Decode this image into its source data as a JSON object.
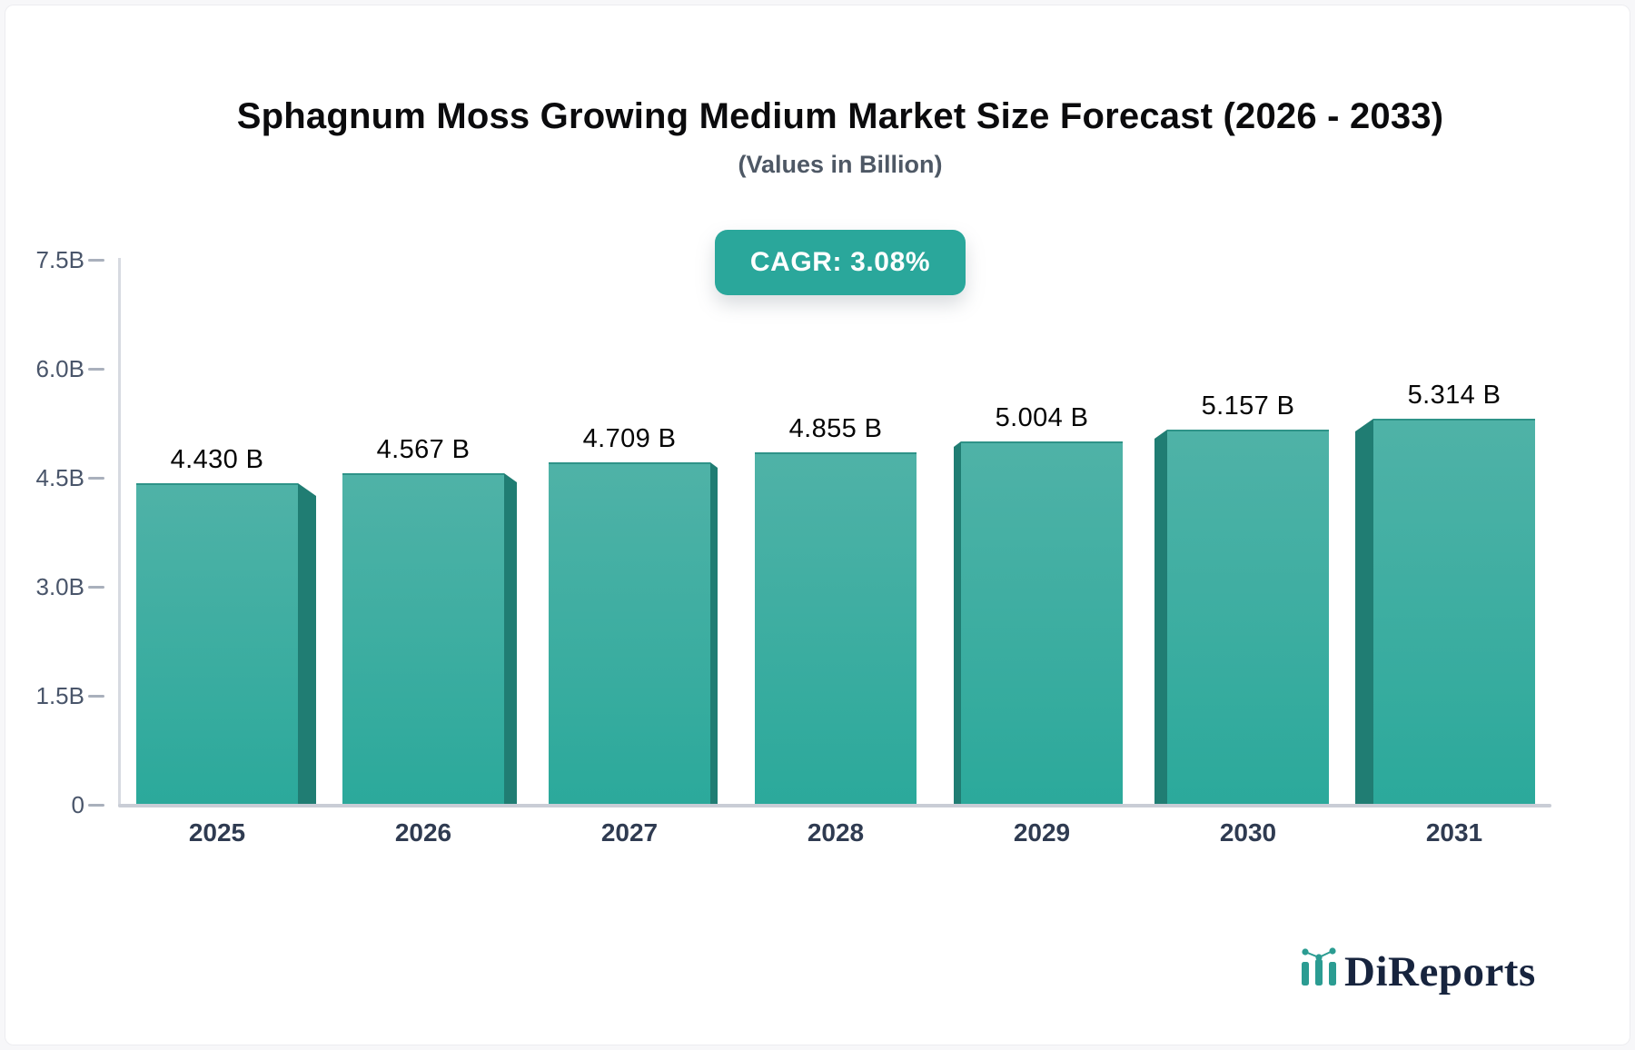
{
  "title": "Sphagnum Moss Growing Medium Market Size Forecast (2026 - 2033)",
  "subtitle": "(Values in Billion)",
  "cagr_badge": "CAGR: 3.08%",
  "brand": "DiReports",
  "colors": {
    "accent_teal": "#2aa79b",
    "bar_gradient_top": "#4fb2a7",
    "bar_gradient_bottom": "#2ba99b",
    "bar_side_face": "#207d73",
    "bar_top_edge": "#2e9388",
    "axis_line": "#d7dae1",
    "baseline": "#c9cdd6",
    "logo_navy": "#17243e",
    "logo_teal": "#2b9c92"
  },
  "chart_data": {
    "type": "bar",
    "title": "Sphagnum Moss Growing Medium Market Size Forecast (2026 - 2033)",
    "subtitle": "(Values in Billion)",
    "annotation": "CAGR: 3.08%",
    "categories": [
      "2025",
      "2026",
      "2027",
      "2028",
      "2029",
      "2030",
      "2031"
    ],
    "values": [
      4.43,
      4.567,
      4.709,
      4.855,
      5.004,
      5.157,
      5.314
    ],
    "value_labels": [
      "4.430 B",
      "4.567 B",
      "4.709 B",
      "4.855 B",
      "5.004 B",
      "5.157 B",
      "5.314 B"
    ],
    "unit": "Billion",
    "y_ticks": [
      {
        "label": "7.5B",
        "value": 7.5
      },
      {
        "label": "6.0B",
        "value": 6.0
      },
      {
        "label": "4.5B",
        "value": 4.5
      },
      {
        "label": "3.0B",
        "value": 3.0
      },
      {
        "label": "1.5B",
        "value": 1.5
      },
      {
        "label": "0",
        "value": 0.0
      }
    ],
    "ylim": [
      0,
      7.5
    ],
    "grid": false,
    "legend": "none"
  }
}
